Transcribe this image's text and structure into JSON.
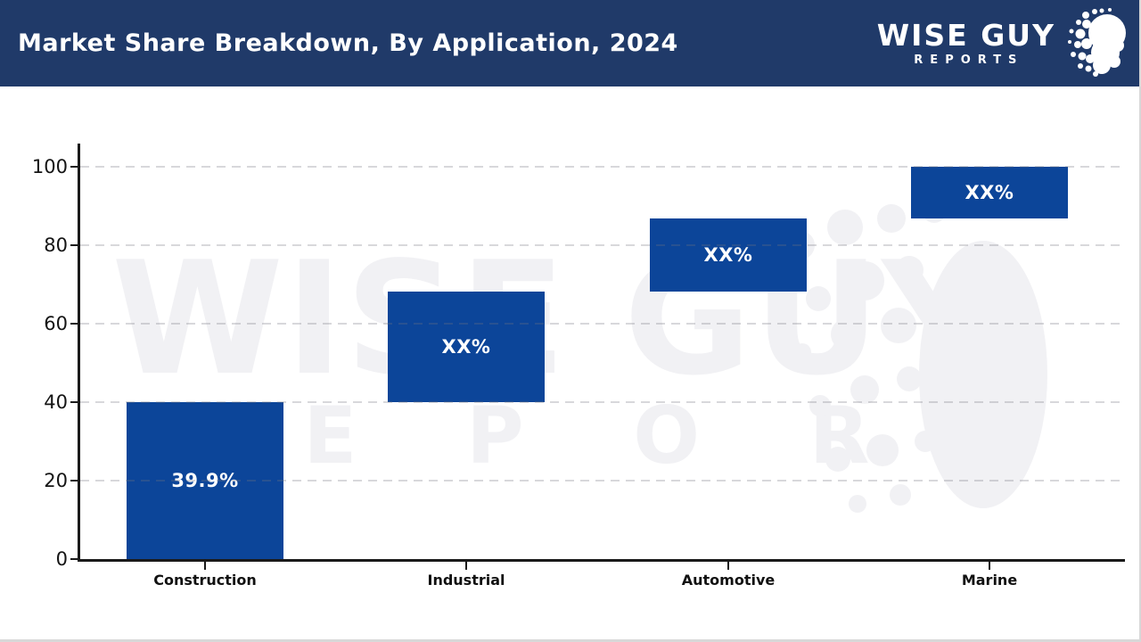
{
  "header": {
    "title": "Market Share Breakdown, By Application, 2024",
    "logo": {
      "line1": "WISE GUY",
      "line2": "REPORTS"
    }
  },
  "watermark": {
    "line1": "WISE GUY",
    "line2": "R E P O R T S"
  },
  "colors": {
    "header_bg": "#203a69",
    "bar": "#0c4599",
    "axis": "#1a1a1a",
    "grid": "#e0e0e0",
    "watermark": "#f1f1f4",
    "bar_label": "#ffffff"
  },
  "chart_data": {
    "type": "bar",
    "subtype": "waterfall",
    "title": "Market Share Breakdown, By Application, 2024",
    "categories": [
      "Construction",
      "Industrial",
      "Automotive",
      "Marine"
    ],
    "segments": [
      {
        "category": "Construction",
        "start": 0,
        "end": 39.9,
        "label": "39.9%"
      },
      {
        "category": "Industrial",
        "start": 39.9,
        "end": 68.1,
        "label": "XX%"
      },
      {
        "category": "Automotive",
        "start": 68.1,
        "end": 86.9,
        "label": "XX%"
      },
      {
        "category": "Marine",
        "start": 86.9,
        "end": 100.0,
        "label": "XX%"
      }
    ],
    "y_ticks": [
      0,
      20,
      40,
      60,
      80,
      100
    ],
    "ylim": [
      0,
      105
    ],
    "xlabel": "",
    "ylabel": "",
    "grid": "horizontal-dashed",
    "legend": null,
    "bar_color": "#0c4599"
  }
}
